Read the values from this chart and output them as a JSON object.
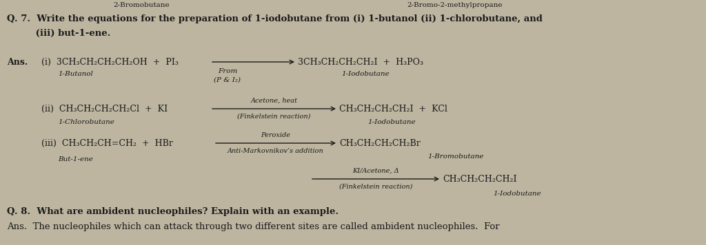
{
  "background_color": "#bdb5a0",
  "text_color": "#1a1a1a",
  "title_top_left": "2‑Bromobutane",
  "title_top_right": "2‑Bromo‑2‑methylpropane",
  "q7_line1": "Q. 7.  Write the equations for the preparation of 1-iodobutane from (i) 1-butanol (ii) 1-chlorobutane, and",
  "q7_line2": "         (iii) but-1-ene.",
  "ans_label": "Ans.",
  "eq1_lhs": "(i)  3CH₃CH₂CH₂CH₂OH  +  PI₃",
  "eq1_rhs": "3CH₃CH₂CH₂CH₂I  +  H₃PO₃",
  "eq1_sub1": "1‑Butanol",
  "eq1_sub2a": "From",
  "eq1_sub2b": "(P & I₂)",
  "eq1_sub3": "1‑Iodobutane",
  "eq2_lhs": "(ii)  CH₃CH₂CH₂CH₂Cl  +  KI",
  "eq2_rhs": "CH₃CH₂CH₂CH₂I  +  KCl",
  "eq2_sub1": "1‑Chlorobutane",
  "eq2_over": "Acetone, heat",
  "eq2_under": "(Finkelstein reaction)",
  "eq2_sub2": "1‑Iodobutane",
  "eq3_lhs": "(iii)  CH₃CH₂CH=CH₂  +  HBr",
  "eq3_rhs": "CH₃CH₂CH₂CH₂Br",
  "eq3_sub1": "But‑1‑ene",
  "eq3_over": "Peroxide",
  "eq3_under": "Anti‑Markovnikov’s addition",
  "eq3_sub2": "1‑Bromobutane",
  "eq4_over": "KI/Acetone, Δ",
  "eq4_rhs": "CH₃CH₂CH₂CH₂I",
  "eq4_under": "(Finkelstein reaction)",
  "eq4_sub": "1‑Iodobutane",
  "q8": "Q. 8.  What are ambident nucleophiles? Explain with an example.",
  "ans8": "Ans.  The nucleophiles which can attack through two different sites are called ambident nucleophiles.  For"
}
